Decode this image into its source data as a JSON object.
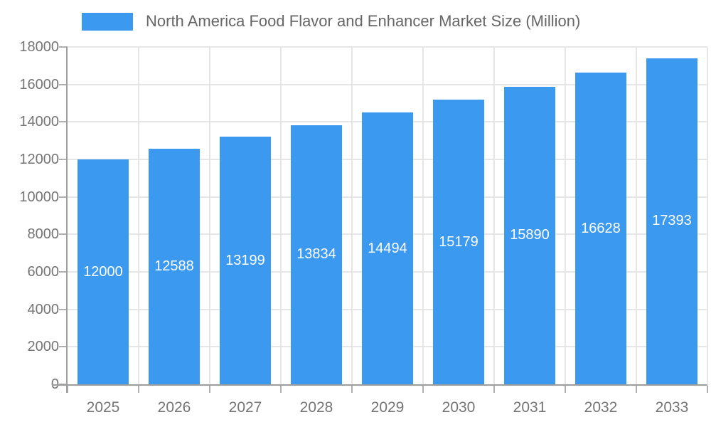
{
  "legend": {
    "label": "North America Food Flavor and Enhancer Market Size (Million)"
  },
  "chart_data": {
    "type": "bar",
    "title": "North America Food Flavor and Enhancer Market Size (Million)",
    "categories": [
      "2025",
      "2026",
      "2027",
      "2028",
      "2029",
      "2030",
      "2031",
      "2032",
      "2033"
    ],
    "series": [
      {
        "name": "North America Food Flavor and Enhancer Market Size (Million)",
        "values": [
          12000,
          12588,
          13199,
          13834,
          14494,
          15179,
          15890,
          16628,
          17393
        ]
      }
    ],
    "xlabel": "",
    "ylabel": "",
    "ylim": [
      0,
      18000
    ],
    "yticks": [
      0,
      2000,
      4000,
      6000,
      8000,
      10000,
      12000,
      14000,
      16000,
      18000
    ],
    "grid": true,
    "legend_position": "top-left",
    "value_labels_shown": true,
    "colors": {
      "bar": "#3B99EF",
      "bar_value_text": "#FFFFFF",
      "axis_line": "#9E9E9E",
      "tick_mark": "#B0B0B0",
      "gridline": "#E6E6E6",
      "tick_label": "#757575",
      "legend_text": "#666666",
      "background": "#FFFFFF"
    }
  }
}
